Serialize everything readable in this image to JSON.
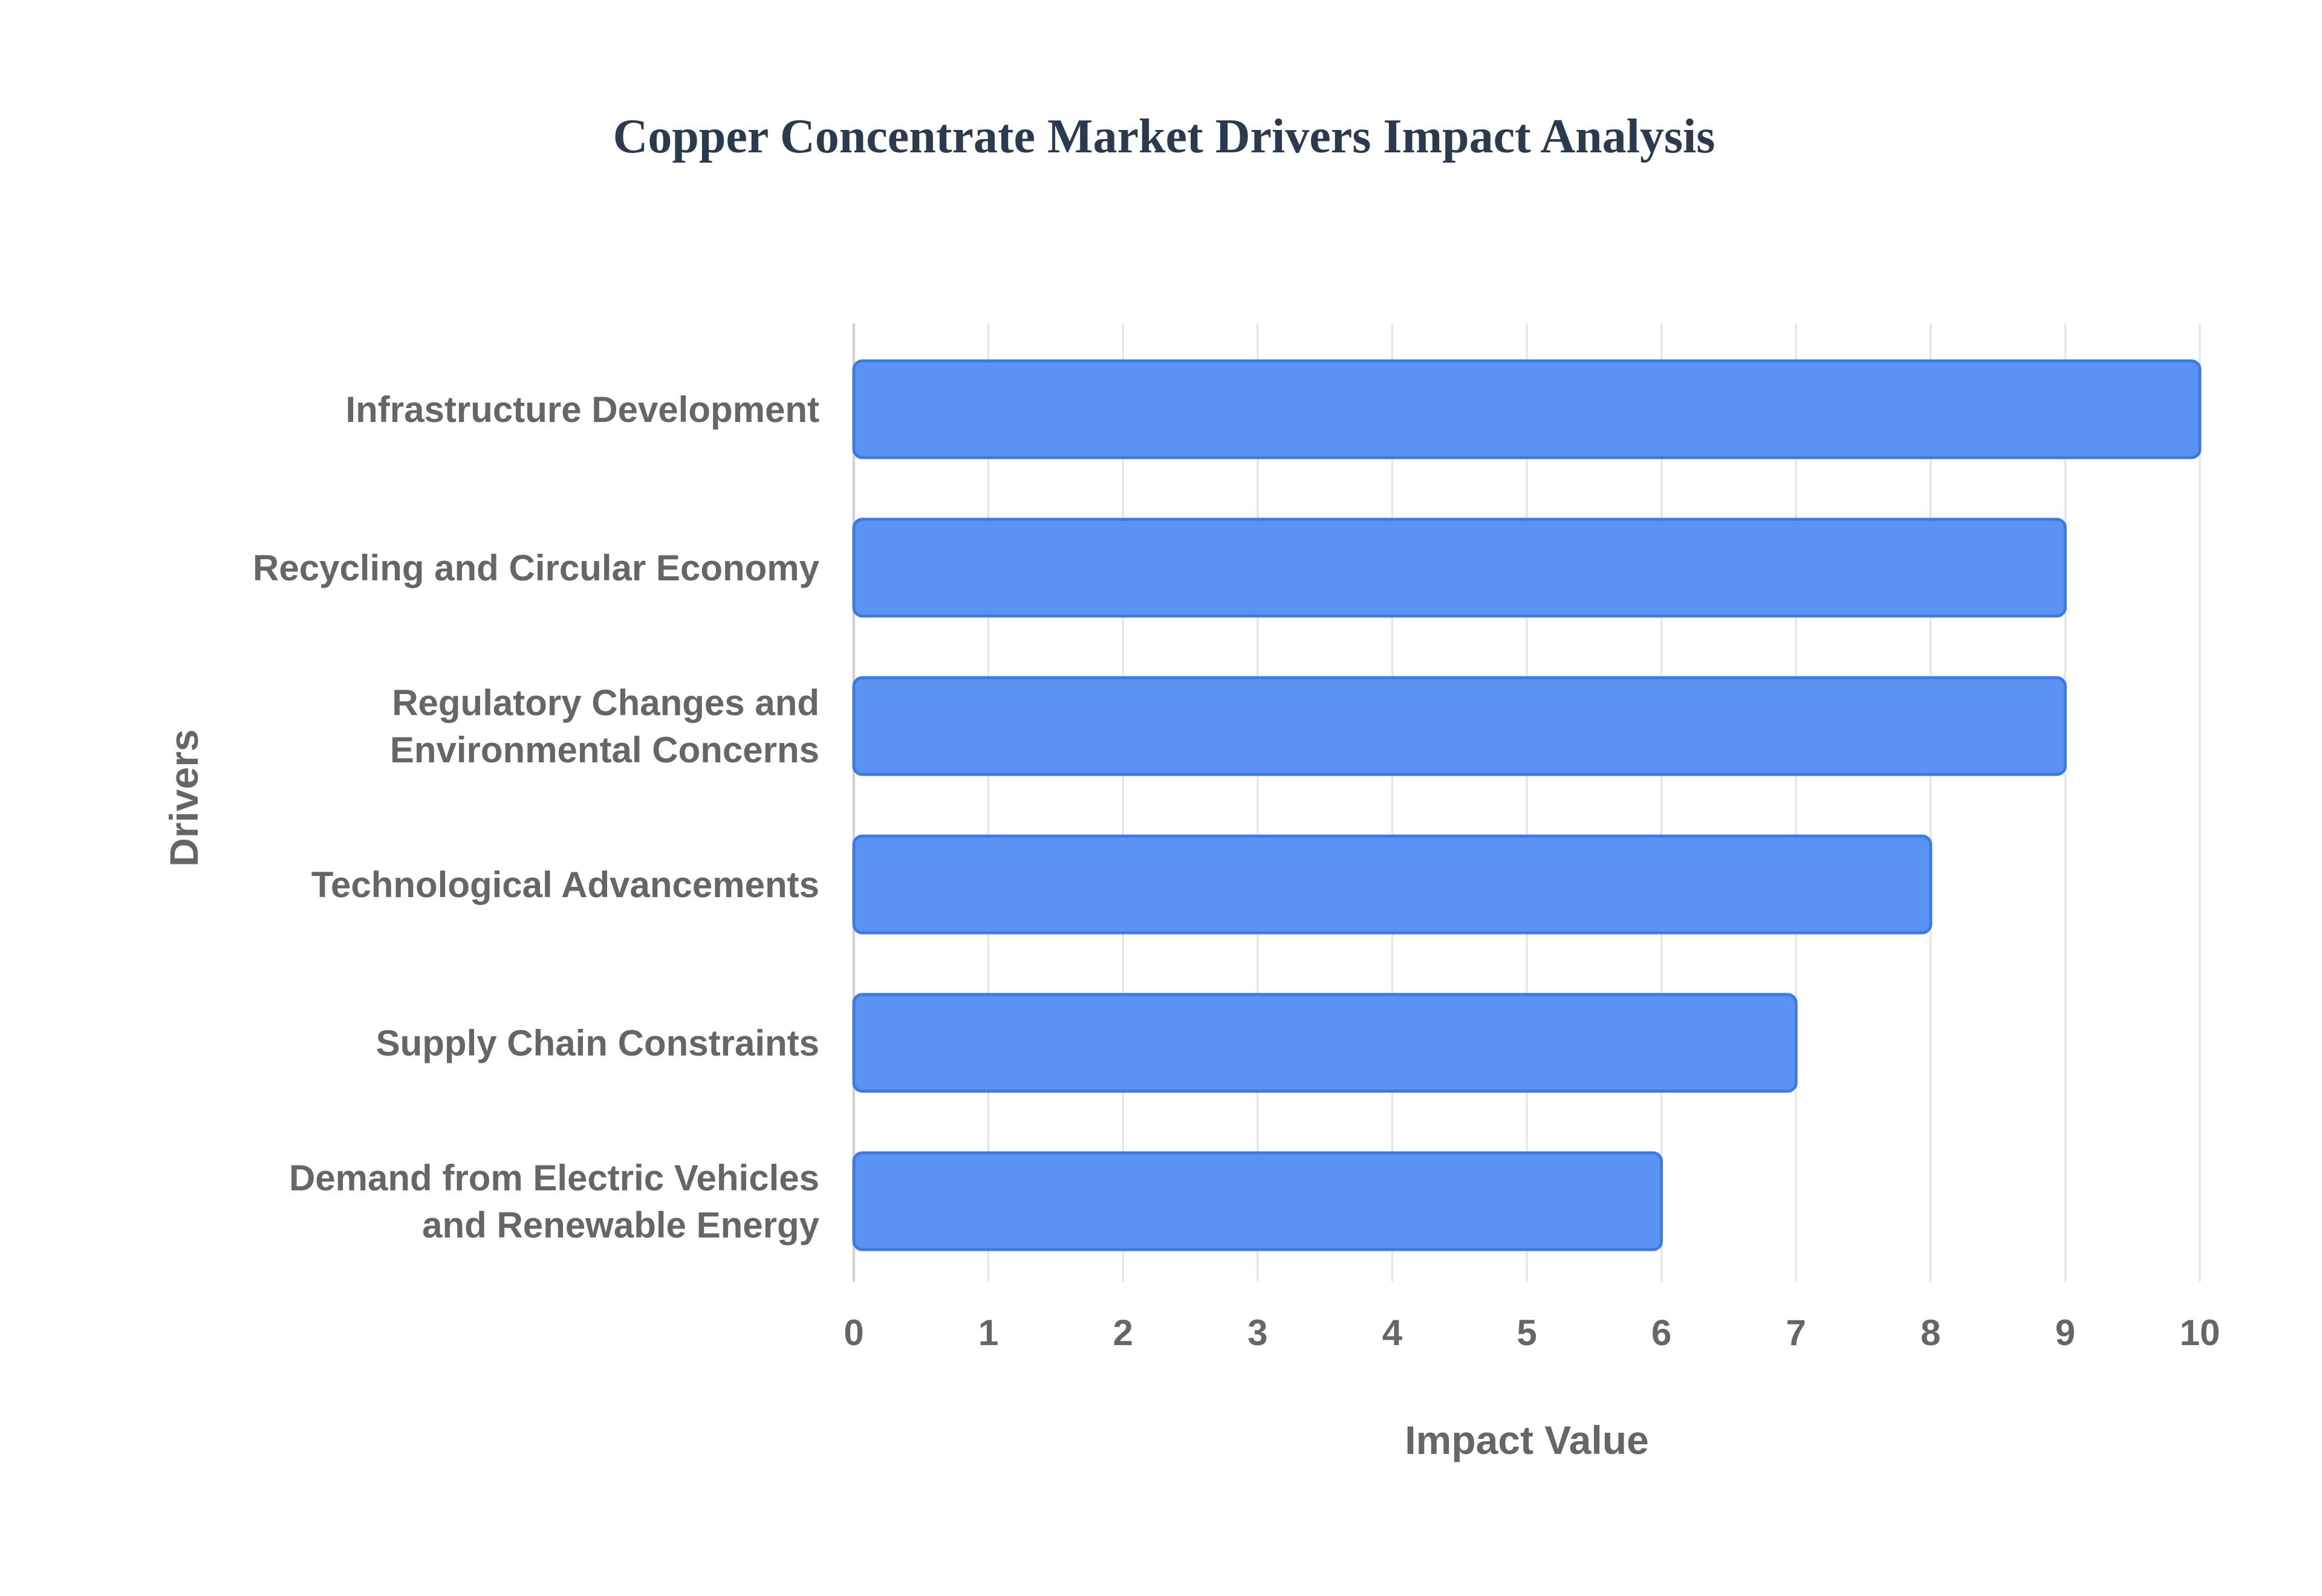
{
  "chart_data": {
    "type": "bar",
    "orientation": "horizontal",
    "title": "Copper Concentrate Market Drivers Impact Analysis",
    "xlabel": "Impact Value",
    "ylabel": "Drivers",
    "categories": [
      [
        "Infrastructure Development"
      ],
      [
        "Recycling and Circular Economy"
      ],
      [
        "Regulatory Changes and",
        "Environmental Concerns"
      ],
      [
        "Technological Advancements"
      ],
      [
        "Supply Chain Constraints"
      ],
      [
        "Demand from Electric Vehicles",
        "and Renewable Energy"
      ]
    ],
    "values": [
      10,
      9,
      9,
      8,
      7,
      6
    ],
    "xlim": [
      0,
      10
    ],
    "xticks": [
      "0",
      "1",
      "2",
      "3",
      "4",
      "5",
      "6",
      "7",
      "8",
      "9",
      "10"
    ],
    "grid": true,
    "legend": "none",
    "colors": {
      "bar_fill": "#5b93f5",
      "bar_stroke": "#3f7ae0",
      "title": "#2b3a4e",
      "text": "#666666"
    }
  }
}
